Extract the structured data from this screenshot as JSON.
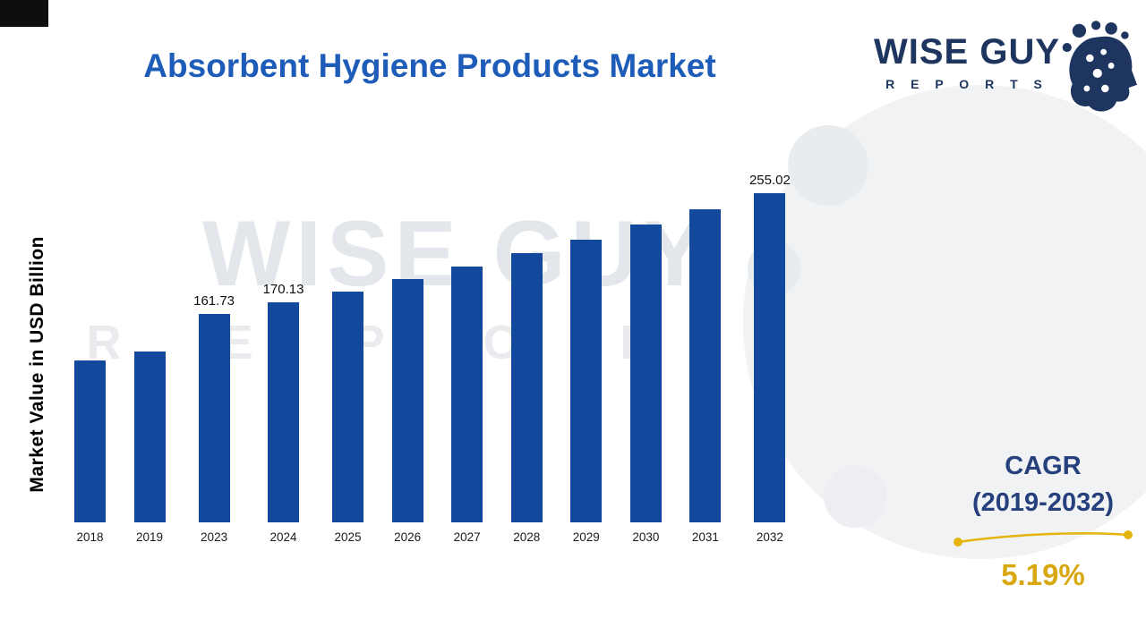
{
  "title": "Absorbent Hygiene Products Market",
  "ylabel": "Market Value in USD Billion",
  "logo": {
    "line1": "WISE GUY",
    "line2": "R E P O R T S"
  },
  "watermark": {
    "line1": "WISE GUY",
    "line2": "R E P O R T"
  },
  "cagr": {
    "label": "CAGR",
    "range": "(2019-2032)",
    "value": "5.19%"
  },
  "colors": {
    "bar": "#13499c",
    "title": "#1d5cb8",
    "navy": "#1e3560",
    "gold": "#d9a70f"
  },
  "chart_data": {
    "type": "bar",
    "title": "Absorbent Hygiene Products Market",
    "ylabel": "Market Value in USD Billion",
    "xlabel": "",
    "categories": [
      "2018",
      "2019",
      "2023",
      "2024",
      "2025",
      "2026",
      "2027",
      "2028",
      "2029",
      "2030",
      "2031",
      "2032"
    ],
    "values": [
      125.58,
      132.1,
      161.73,
      170.13,
      178.96,
      188.25,
      198.02,
      208.3,
      219.11,
      230.48,
      242.44,
      255.02
    ],
    "value_labels": {
      "2023": "161.73",
      "2024": "170.13",
      "2032": "255.02"
    },
    "ylim": [
      0,
      280
    ],
    "grid": false,
    "legend": "none",
    "bar_color": "#13499c"
  }
}
